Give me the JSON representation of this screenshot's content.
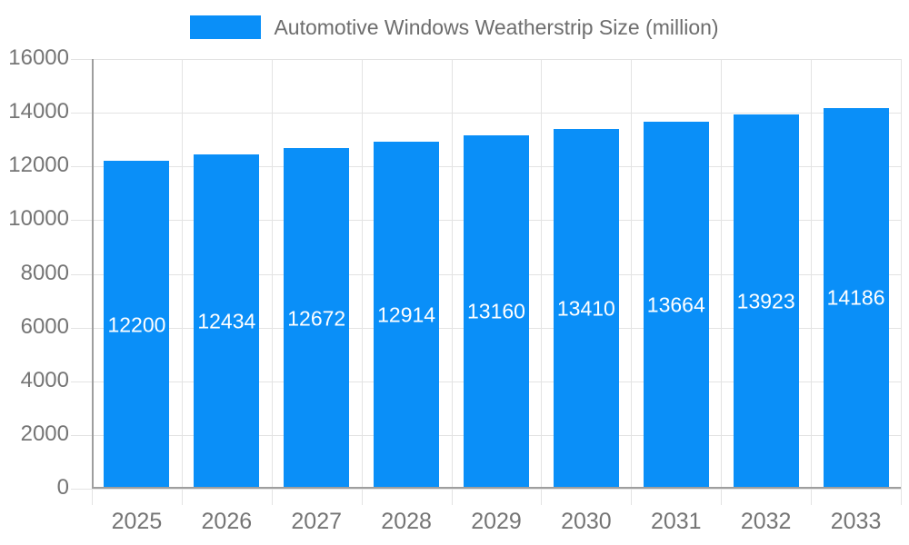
{
  "legend": {
    "position": "top"
  },
  "chart_data": {
    "type": "bar",
    "title": "",
    "series_name": "Automotive Windows Weatherstrip Size (million)",
    "categories": [
      "2025",
      "2026",
      "2027",
      "2028",
      "2029",
      "2030",
      "2031",
      "2032",
      "2033"
    ],
    "values": [
      12200,
      12434,
      12672,
      12914,
      13160,
      13410,
      13664,
      13923,
      14186
    ],
    "xlabel": "",
    "ylabel": "",
    "ylim": [
      0,
      16000
    ],
    "yticks": [
      0,
      2000,
      4000,
      6000,
      8000,
      10000,
      12000,
      14000,
      16000
    ],
    "grid": true,
    "legend_position": "top",
    "bar_color": "#0a8ff8",
    "bar_label_color": "#ffffff",
    "axis_text_color": "#757575",
    "legend_text_color": "#6d6d6d",
    "gridline_color": "#e3e3e3",
    "axis_line_color": "#9e9e9e",
    "background_color": "#ffffff"
  }
}
